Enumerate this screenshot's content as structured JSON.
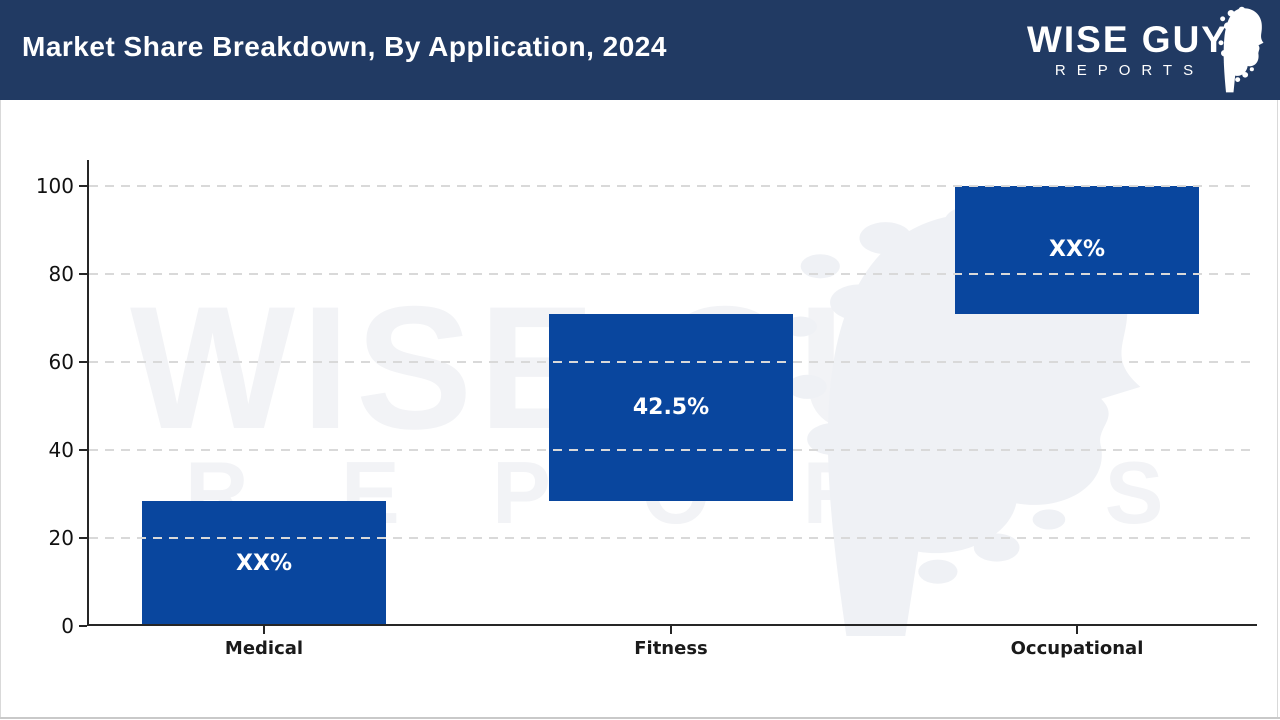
{
  "header": {
    "title": "Market Share Breakdown, By Application, 2024",
    "logo": {
      "line1": "WISE GUY",
      "line2": "REPORTS"
    }
  },
  "watermark": {
    "line1": "WISE GUY",
    "line2": "R E P O R T S"
  },
  "colors": {
    "header_bg": "#213a63",
    "bar_blue": "#09469e",
    "grid": "#d9d9d9",
    "axis": "#262626",
    "watermark_gray": "#f2f3f6"
  },
  "chart_data": {
    "type": "bar",
    "subtype": "waterfall-stacked-segments",
    "title": "Market Share Breakdown, By Application, 2024",
    "categories": [
      "Medical",
      "Fitness",
      "Occupational"
    ],
    "segments": [
      {
        "category": "Medical",
        "start": 0,
        "end": 28.5,
        "value_label": "XX%"
      },
      {
        "category": "Fitness",
        "start": 28.5,
        "end": 71,
        "value_label": "42.5%"
      },
      {
        "category": "Occupational",
        "start": 71,
        "end": 100,
        "value_label": "XX%"
      }
    ],
    "series": [
      {
        "name": "Market Share %",
        "values": [
          28.5,
          42.5,
          29
        ]
      }
    ],
    "xlabel": "",
    "ylabel": "",
    "ylim": [
      0,
      100
    ],
    "yticks": [
      0,
      20,
      40,
      60,
      80,
      100
    ],
    "grid": "horizontal-dashed, drawn above bars",
    "legend": "none",
    "bar_color": "#09469e",
    "value_labels_inside_bars": true
  }
}
